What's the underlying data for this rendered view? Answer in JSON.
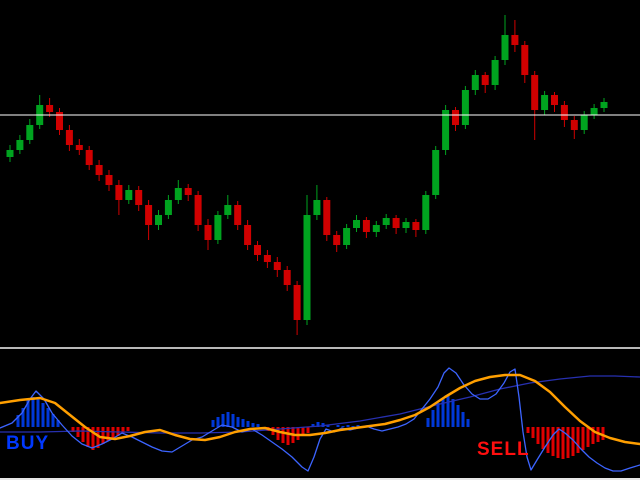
{
  "labels": {
    "buy": "BUY",
    "sell": "SELL"
  },
  "colors": {
    "background": "#000000",
    "bull": "#00a31f",
    "bear": "#d10000",
    "price_line": "#ffffff",
    "divider": "#b8b8b8",
    "hist_pos": "#0038d8",
    "hist_neg": "#e00000",
    "ma_line": "#ff9f00",
    "fast_line": "#3c64ff",
    "slow_line": "#2730b0",
    "buy_text": "#0038ff",
    "sell_text": "#ff0f0f"
  },
  "chart_data": [
    {
      "type": "candlestick",
      "panel": "price",
      "title": "",
      "xlabel": "",
      "ylabel": "",
      "ylim": [
        0,
        345
      ],
      "grid": false,
      "x_start": 10,
      "x_spacing": 9.9,
      "candle_width": 7,
      "price_line_level": 230,
      "candles": [
        [
          188,
          200,
          183,
          195
        ],
        [
          195,
          210,
          191,
          205
        ],
        [
          205,
          226,
          201,
          220
        ],
        [
          220,
          250,
          216,
          240
        ],
        [
          240,
          247,
          228,
          233
        ],
        [
          233,
          237,
          210,
          215
        ],
        [
          215,
          220,
          194,
          200
        ],
        [
          200,
          206,
          190,
          195
        ],
        [
          195,
          199,
          175,
          180
        ],
        [
          180,
          185,
          164,
          170
        ],
        [
          170,
          175,
          154,
          160
        ],
        [
          160,
          165,
          130,
          145
        ],
        [
          145,
          160,
          141,
          155
        ],
        [
          155,
          159,
          134,
          140
        ],
        [
          140,
          145,
          105,
          120
        ],
        [
          120,
          135,
          115,
          130
        ],
        [
          130,
          150,
          126,
          145
        ],
        [
          145,
          165,
          141,
          157
        ],
        [
          157,
          161,
          144,
          150
        ],
        [
          150,
          154,
          114,
          120
        ],
        [
          120,
          126,
          95,
          105
        ],
        [
          105,
          134,
          101,
          130
        ],
        [
          130,
          150,
          126,
          140
        ],
        [
          140,
          144,
          115,
          120
        ],
        [
          120,
          125,
          95,
          100
        ],
        [
          100,
          104,
          84,
          90
        ],
        [
          90,
          95,
          77,
          83
        ],
        [
          83,
          88,
          68,
          75
        ],
        [
          75,
          79,
          54,
          60
        ],
        [
          60,
          64,
          10,
          25
        ],
        [
          25,
          150,
          20,
          130
        ],
        [
          130,
          160,
          125,
          145
        ],
        [
          145,
          148,
          104,
          110
        ],
        [
          110,
          114,
          93,
          100
        ],
        [
          100,
          121,
          96,
          117
        ],
        [
          117,
          130,
          113,
          125
        ],
        [
          125,
          128,
          107,
          113
        ],
        [
          113,
          124,
          108,
          120
        ],
        [
          120,
          131,
          116,
          127
        ],
        [
          127,
          130,
          111,
          117
        ],
        [
          117,
          127,
          112,
          123
        ],
        [
          123,
          126,
          108,
          115
        ],
        [
          115,
          154,
          111,
          150
        ],
        [
          150,
          199,
          146,
          195
        ],
        [
          195,
          240,
          190,
          235
        ],
        [
          235,
          238,
          214,
          220
        ],
        [
          220,
          259,
          216,
          255
        ],
        [
          255,
          275,
          250,
          270
        ],
        [
          270,
          273,
          252,
          260
        ],
        [
          260,
          289,
          255,
          285
        ],
        [
          285,
          330,
          280,
          310
        ],
        [
          310,
          325,
          293,
          300
        ],
        [
          300,
          304,
          262,
          270
        ],
        [
          270,
          274,
          205,
          235
        ],
        [
          235,
          254,
          230,
          250
        ],
        [
          250,
          253,
          233,
          240
        ],
        [
          240,
          244,
          218,
          225
        ],
        [
          225,
          229,
          206,
          215
        ],
        [
          215,
          234,
          211,
          230
        ],
        [
          230,
          241,
          226,
          237
        ],
        [
          237,
          247,
          233,
          243
        ]
      ]
    },
    {
      "type": "macd",
      "panel": "indicator",
      "baseline": 0,
      "ylim": [
        -50,
        62
      ],
      "grid": false,
      "histogram": [
        [
          18,
          12
        ],
        [
          23,
          19
        ],
        [
          28,
          27
        ],
        [
          33,
          30
        ],
        [
          38,
          28
        ],
        [
          43,
          24
        ],
        [
          48,
          19
        ],
        [
          53,
          13
        ],
        [
          58,
          7
        ],
        [
          73,
          -5
        ],
        [
          78,
          -10
        ],
        [
          83,
          -15
        ],
        [
          88,
          -20
        ],
        [
          93,
          -23
        ],
        [
          98,
          -21
        ],
        [
          103,
          -17
        ],
        [
          108,
          -14
        ],
        [
          113,
          -11
        ],
        [
          118,
          -9
        ],
        [
          123,
          -6
        ],
        [
          128,
          -4
        ],
        [
          213,
          7
        ],
        [
          218,
          10
        ],
        [
          223,
          13
        ],
        [
          228,
          15
        ],
        [
          233,
          13
        ],
        [
          238,
          10
        ],
        [
          243,
          8
        ],
        [
          248,
          6
        ],
        [
          253,
          4
        ],
        [
          258,
          3
        ],
        [
          268,
          -4
        ],
        [
          273,
          -8
        ],
        [
          278,
          -13
        ],
        [
          283,
          -16
        ],
        [
          288,
          -18
        ],
        [
          293,
          -16
        ],
        [
          298,
          -13
        ],
        [
          303,
          -9
        ],
        [
          308,
          -6
        ],
        [
          313,
          3
        ],
        [
          318,
          5
        ],
        [
          323,
          4
        ],
        [
          328,
          2
        ],
        [
          338,
          2
        ],
        [
          343,
          1
        ],
        [
          348,
          2
        ],
        [
          353,
          1
        ],
        [
          358,
          2
        ],
        [
          363,
          1
        ],
        [
          368,
          2
        ],
        [
          428,
          9
        ],
        [
          433,
          17
        ],
        [
          438,
          24
        ],
        [
          443,
          29
        ],
        [
          448,
          31
        ],
        [
          453,
          28
        ],
        [
          458,
          22
        ],
        [
          463,
          15
        ],
        [
          468,
          8
        ],
        [
          528,
          -6
        ],
        [
          533,
          -11
        ],
        [
          538,
          -17
        ],
        [
          543,
          -22
        ],
        [
          548,
          -26
        ],
        [
          553,
          -29
        ],
        [
          558,
          -31
        ],
        [
          563,
          -32
        ],
        [
          568,
          -31
        ],
        [
          573,
          -29
        ],
        [
          578,
          -26
        ],
        [
          583,
          -23
        ],
        [
          588,
          -20
        ],
        [
          593,
          -17
        ],
        [
          598,
          -15
        ],
        [
          603,
          -13
        ]
      ],
      "series": [
        {
          "name": "slow-line",
          "color_key": "slow_line",
          "width": 1.3,
          "points": [
            [
              0,
              -5
            ],
            [
              40,
              -5
            ],
            [
              80,
              -4
            ],
            [
              120,
              -5
            ],
            [
              160,
              -6
            ],
            [
              200,
              -6
            ],
            [
              240,
              -5
            ],
            [
              280,
              -2
            ],
            [
              320,
              1
            ],
            [
              360,
              6
            ],
            [
              400,
              13
            ],
            [
              440,
              23
            ],
            [
              470,
              30
            ],
            [
              500,
              38
            ],
            [
              530,
              44
            ],
            [
              560,
              48
            ],
            [
              590,
              51
            ],
            [
              615,
              51
            ],
            [
              640,
              50
            ]
          ]
        },
        {
          "name": "fast-line",
          "color_key": "fast_line",
          "width": 1.3,
          "points": [
            [
              0,
              -1
            ],
            [
              12,
              4
            ],
            [
              22,
              14
            ],
            [
              30,
              28
            ],
            [
              36,
              36
            ],
            [
              44,
              28
            ],
            [
              52,
              14
            ],
            [
              62,
              2
            ],
            [
              72,
              -9
            ],
            [
              82,
              -17
            ],
            [
              92,
              -21
            ],
            [
              102,
              -17
            ],
            [
              112,
              -12
            ],
            [
              122,
              -6
            ],
            [
              132,
              -10
            ],
            [
              142,
              -15
            ],
            [
              152,
              -20
            ],
            [
              162,
              -24
            ],
            [
              172,
              -25
            ],
            [
              182,
              -19
            ],
            [
              192,
              -13
            ],
            [
              202,
              -10
            ],
            [
              212,
              -4
            ],
            [
              222,
              2
            ],
            [
              232,
              0
            ],
            [
              242,
              -5
            ],
            [
              252,
              -2
            ],
            [
              262,
              -8
            ],
            [
              272,
              -15
            ],
            [
              282,
              -22
            ],
            [
              292,
              -30
            ],
            [
              302,
              -40
            ],
            [
              308,
              -44
            ],
            [
              314,
              -30
            ],
            [
              320,
              -12
            ],
            [
              326,
              -2
            ],
            [
              334,
              -5
            ],
            [
              342,
              -1
            ],
            [
              350,
              -3
            ],
            [
              358,
              -1
            ],
            [
              366,
              1
            ],
            [
              374,
              -2
            ],
            [
              382,
              -4
            ],
            [
              390,
              -2
            ],
            [
              398,
              0
            ],
            [
              406,
              3
            ],
            [
              414,
              8
            ],
            [
              422,
              18
            ],
            [
              430,
              28
            ],
            [
              438,
              40
            ],
            [
              444,
              54
            ],
            [
              449,
              59
            ],
            [
              456,
              54
            ],
            [
              464,
              42
            ],
            [
              472,
              33
            ],
            [
              480,
              28
            ],
            [
              488,
              28
            ],
            [
              496,
              33
            ],
            [
              504,
              44
            ],
            [
              510,
              55
            ],
            [
              515,
              58
            ],
            [
              519,
              30
            ],
            [
              523,
              -5
            ],
            [
              527,
              -30
            ],
            [
              531,
              -43
            ],
            [
              537,
              -33
            ],
            [
              545,
              -20
            ],
            [
              553,
              -8
            ],
            [
              559,
              -2
            ],
            [
              565,
              -6
            ],
            [
              573,
              -13
            ],
            [
              581,
              -22
            ],
            [
              589,
              -30
            ],
            [
              597,
              -36
            ],
            [
              605,
              -41
            ],
            [
              613,
              -44
            ],
            [
              621,
              -44
            ],
            [
              630,
              -41
            ],
            [
              640,
              -38
            ]
          ]
        },
        {
          "name": "signal-ma",
          "color_key": "ma_line",
          "width": 2.5,
          "points": [
            [
              0,
              24
            ],
            [
              20,
              27
            ],
            [
              40,
              29
            ],
            [
              55,
              24
            ],
            [
              70,
              12
            ],
            [
              85,
              0
            ],
            [
              100,
              -10
            ],
            [
              115,
              -12
            ],
            [
              130,
              -9
            ],
            [
              145,
              -5
            ],
            [
              160,
              -3
            ],
            [
              175,
              -8
            ],
            [
              190,
              -12
            ],
            [
              205,
              -13
            ],
            [
              220,
              -10
            ],
            [
              235,
              -5
            ],
            [
              250,
              -2
            ],
            [
              265,
              -1
            ],
            [
              280,
              -5
            ],
            [
              295,
              -8
            ],
            [
              310,
              -8
            ],
            [
              325,
              -6
            ],
            [
              340,
              -3
            ],
            [
              355,
              -1
            ],
            [
              370,
              1
            ],
            [
              385,
              3
            ],
            [
              400,
              7
            ],
            [
              415,
              12
            ],
            [
              430,
              20
            ],
            [
              445,
              30
            ],
            [
              460,
              39
            ],
            [
              475,
              46
            ],
            [
              490,
              50
            ],
            [
              505,
              52
            ],
            [
              520,
              52
            ],
            [
              535,
              46
            ],
            [
              550,
              35
            ],
            [
              565,
              20
            ],
            [
              580,
              6
            ],
            [
              595,
              -5
            ],
            [
              610,
              -11
            ],
            [
              625,
              -15
            ],
            [
              640,
              -17
            ]
          ]
        }
      ]
    }
  ]
}
